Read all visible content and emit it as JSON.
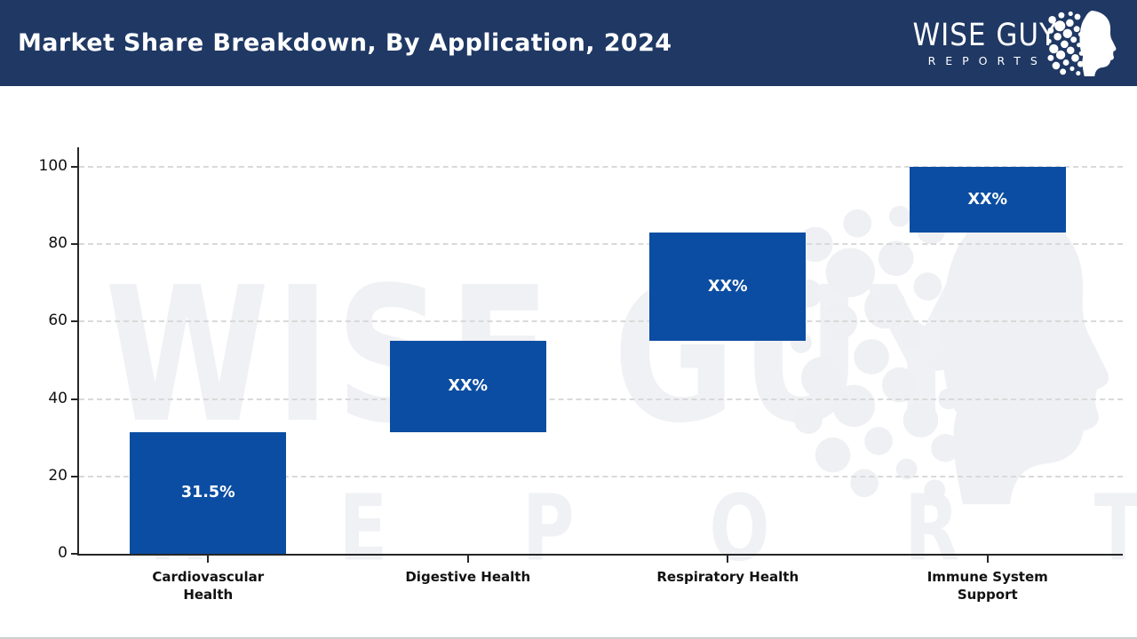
{
  "header": {
    "title": "Market Share Breakdown, By Application, 2024",
    "bg_color": "#1f3864",
    "logo": {
      "line1": "WISE GUY",
      "line2": "REPORTS"
    }
  },
  "watermark": {
    "line1": "WISE GUY",
    "line2": "R E P O R T S"
  },
  "chart_data": {
    "type": "bar",
    "subtype": "waterfall",
    "title": "Market Share Breakdown, By Application, 2024",
    "categories": [
      "Cardiovascular Health",
      "Digestive Health",
      "Respiratory Health",
      "Immune System Support"
    ],
    "category_lines": [
      [
        "Cardiovascular",
        "Health"
      ],
      [
        "Digestive Health"
      ],
      [
        "Respiratory Health"
      ],
      [
        "Immune System",
        "Support"
      ]
    ],
    "segments": [
      {
        "category": "Cardiovascular Health",
        "start": 0,
        "end": 31.5,
        "label": "31.5%"
      },
      {
        "category": "Digestive Health",
        "start": 31.5,
        "end": 55,
        "label": "XX%"
      },
      {
        "category": "Respiratory Health",
        "start": 55,
        "end": 83,
        "label": "XX%"
      },
      {
        "category": "Immune System Support",
        "start": 83,
        "end": 100,
        "label": "XX%"
      }
    ],
    "xlabel": "",
    "ylabel": "",
    "yticks": [
      0,
      20,
      40,
      60,
      80,
      100
    ],
    "ylim": [
      0,
      105
    ],
    "grid": "horizontal-dashed",
    "legend": "none",
    "bar_color": "#0b4da2",
    "bar_label_color": "#ffffff"
  }
}
